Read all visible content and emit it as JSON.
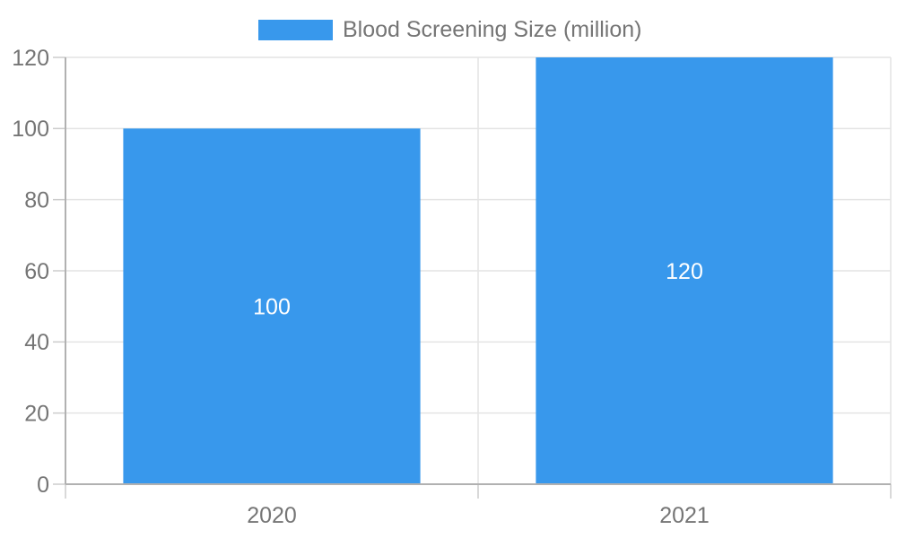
{
  "chart_data": {
    "type": "bar",
    "title": "",
    "categories": [
      "2020",
      "2021"
    ],
    "series": [
      {
        "name": "Blood Screening Size (million)",
        "values": [
          100,
          120
        ],
        "data_labels": [
          "100",
          "120"
        ]
      }
    ],
    "xlabel": "",
    "ylabel": "",
    "ylim": [
      0,
      120
    ],
    "yticks": [
      0,
      20,
      40,
      60,
      80,
      100,
      120
    ],
    "grid": true,
    "legend_position": "top"
  },
  "legend": {
    "label": "Blood Screening Size (million)"
  },
  "colors": {
    "bar": "#3898ec",
    "axis_line": "#b1b1b1",
    "gridline": "#e4e4e4",
    "tick": "#cccccc",
    "text": "#757575",
    "bar_label": "#ffffff",
    "background": "#ffffff"
  }
}
